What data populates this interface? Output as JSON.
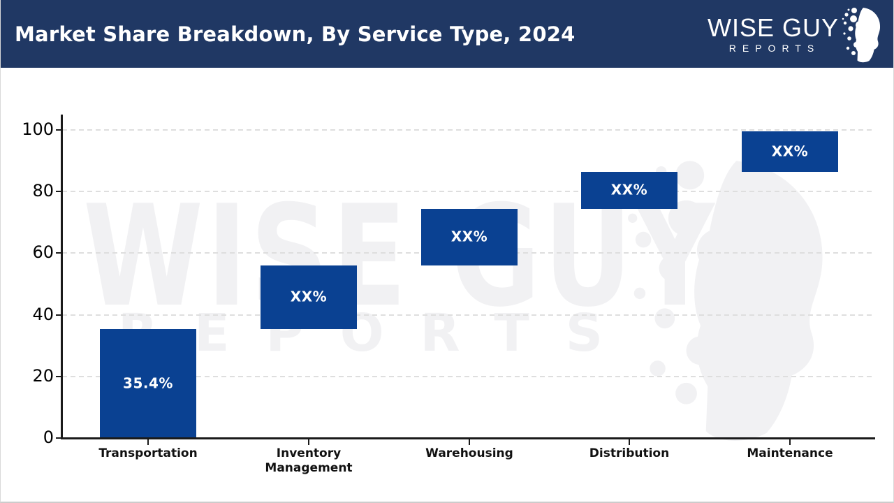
{
  "header": {
    "title": "Market Share Breakdown, By Service Type, 2024",
    "background_color": "#203864",
    "logo": {
      "brand_line1": "WISE GUY",
      "brand_line2": "REPORTS"
    }
  },
  "watermark": {
    "line1": "WISE GUY",
    "line2": "REPORTS"
  },
  "chart_data": {
    "type": "bar",
    "subtype": "floating-waterfall",
    "title": "Market Share Breakdown, By Service Type, 2024",
    "categories": [
      "Transportation",
      "Inventory Management",
      "Warehousing",
      "Distribution",
      "Maintenance"
    ],
    "segments": [
      {
        "category": "Transportation",
        "start": 0,
        "end": 35.4,
        "label": "35.4%"
      },
      {
        "category": "Inventory Management",
        "start": 35.4,
        "end": 56.0,
        "label": "XX%"
      },
      {
        "category": "Warehousing",
        "start": 56.0,
        "end": 74.4,
        "label": "XX%"
      },
      {
        "category": "Distribution",
        "start": 74.4,
        "end": 86.4,
        "label": "XX%"
      },
      {
        "category": "Maintenance",
        "start": 86.4,
        "end": 99.5,
        "label": "XX%"
      }
    ],
    "xlabel": "",
    "ylabel": "",
    "ylim": [
      0,
      100
    ],
    "yticks": [
      0,
      20,
      40,
      60,
      80,
      100
    ],
    "bar_color": "#0a4192",
    "bar_label_color": "#ffffff",
    "grid": {
      "horizontal": true,
      "style": "dashed",
      "color": "#dedede"
    },
    "legend": null
  }
}
